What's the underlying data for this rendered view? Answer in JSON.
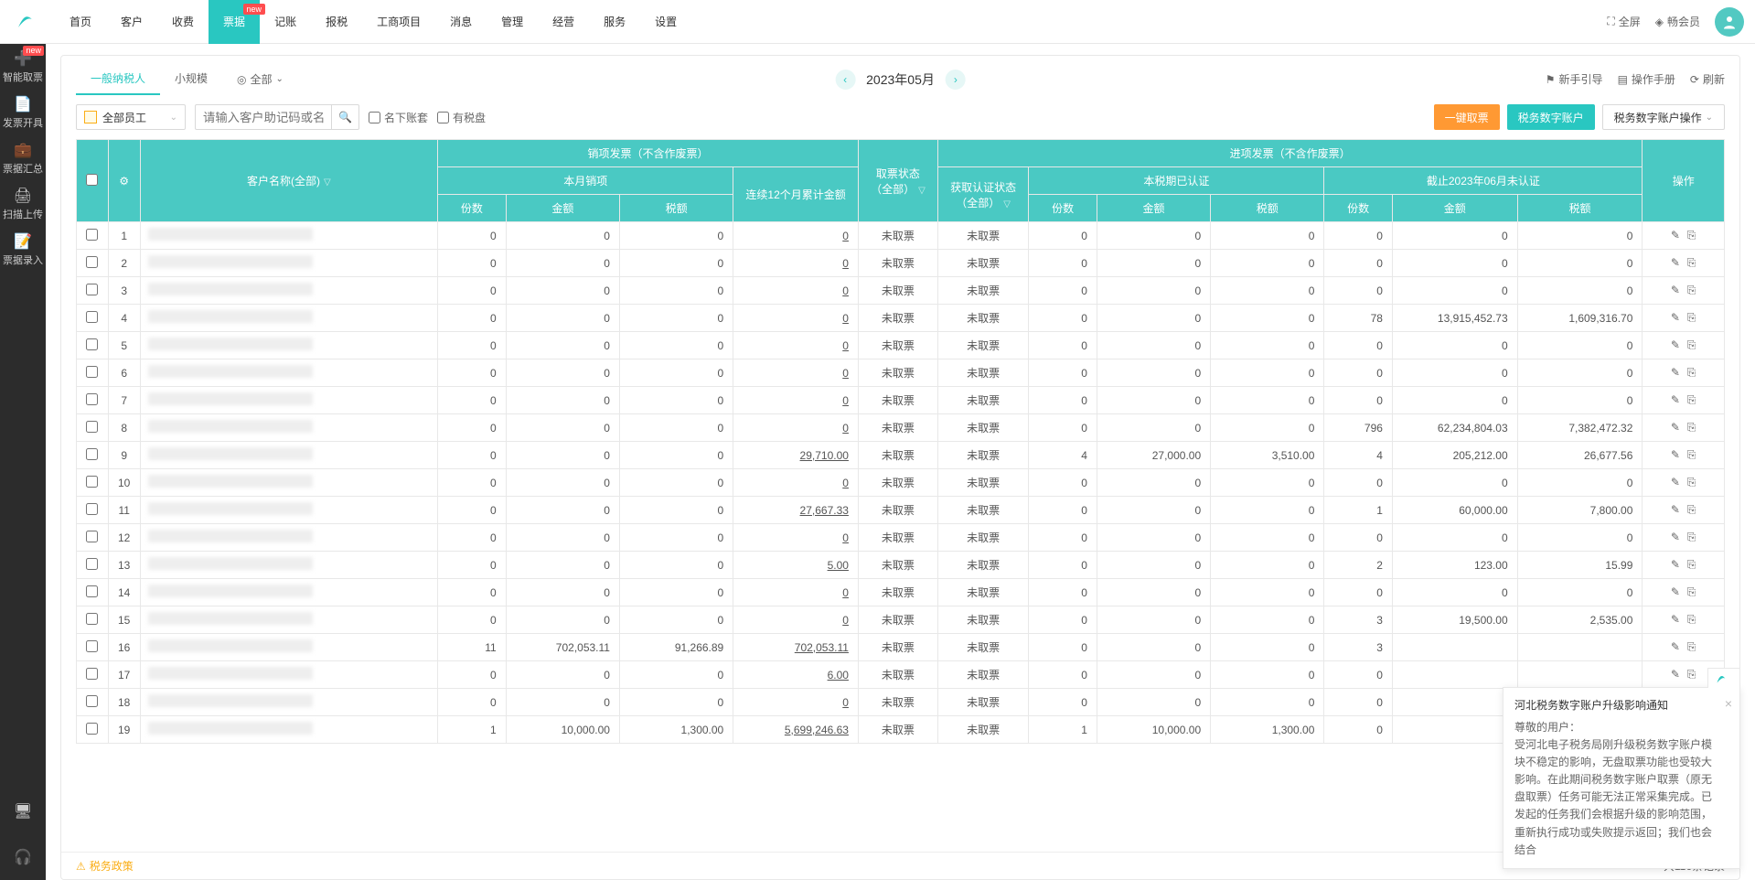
{
  "colors": {
    "teal": "#29c7c1",
    "teal_header": "#4ac9c3",
    "orange": "#ff9933",
    "red": "#ff4d4f",
    "warn": "#faad14",
    "sidebar_bg": "#2c2c2c"
  },
  "topnav": {
    "items": [
      {
        "label": "首页"
      },
      {
        "label": "客户"
      },
      {
        "label": "收费"
      },
      {
        "label": "票据",
        "active": true,
        "new": true
      },
      {
        "label": "记账"
      },
      {
        "label": "报税"
      },
      {
        "label": "工商项目"
      },
      {
        "label": "消息"
      },
      {
        "label": "管理"
      },
      {
        "label": "经营"
      },
      {
        "label": "服务"
      },
      {
        "label": "设置"
      }
    ],
    "right": {
      "fullscreen": "全屏",
      "member": "畅会员"
    }
  },
  "sidebar": {
    "items": [
      {
        "label": "智能取票",
        "icon": "➕",
        "new": true
      },
      {
        "label": "发票开具",
        "icon": "📄"
      },
      {
        "label": "票据汇总",
        "icon": "💼"
      },
      {
        "label": "扫描上传",
        "icon": "🖨"
      },
      {
        "label": "票据录入",
        "icon": "📝"
      }
    ]
  },
  "tabs": {
    "items": [
      {
        "label": "一般纳税人",
        "active": true
      },
      {
        "label": "小规模"
      }
    ],
    "scope": "全部",
    "month": "2023年05月",
    "right": {
      "guide": "新手引导",
      "manual": "操作手册",
      "refresh": "刷新"
    }
  },
  "filter": {
    "employee_select": "全部员工",
    "search_placeholder": "请输入客户助记码或名称",
    "chk_name": "名下账套",
    "chk_disk": "有税盘",
    "btn_fetch": "一键取票",
    "btn_digital": "税务数字账户",
    "btn_ops": "税务数字账户操作"
  },
  "table": {
    "headers": {
      "group_sales": "销项发票（不含作废票）",
      "group_input": "进项发票（不含作废票）",
      "month_sale": "本月销项",
      "cum12": "连续12个月累计金额",
      "fetch_status": "取票状态（全部）",
      "cert_period": "本税期已认证",
      "uncert_until": "截止2023年06月未认证",
      "cert_status": "获取认证状态（全部）",
      "customer": "客户名称(全部)",
      "qty": "份数",
      "amount": "金额",
      "tax": "税额",
      "ops": "操作"
    },
    "status_unfetched": "未取票",
    "rows": [
      {
        "idx": 1,
        "q": 0,
        "a": "0",
        "t": "0",
        "c12": "0",
        "fs": "未取票",
        "cs": "未取票",
        "cq": 0,
        "ca": "0",
        "ct": "0",
        "uq": 0,
        "ua": "0",
        "ut": "0"
      },
      {
        "idx": 2,
        "q": 0,
        "a": "0",
        "t": "0",
        "c12": "0",
        "fs": "未取票",
        "cs": "未取票",
        "cq": 0,
        "ca": "0",
        "ct": "0",
        "uq": 0,
        "ua": "0",
        "ut": "0"
      },
      {
        "idx": 3,
        "q": 0,
        "a": "0",
        "t": "0",
        "c12": "0",
        "fs": "未取票",
        "cs": "未取票",
        "cq": 0,
        "ca": "0",
        "ct": "0",
        "uq": 0,
        "ua": "0",
        "ut": "0"
      },
      {
        "idx": 4,
        "q": 0,
        "a": "0",
        "t": "0",
        "c12": "0",
        "fs": "未取票",
        "cs": "未取票",
        "cq": 0,
        "ca": "0",
        "ct": "0",
        "uq": 78,
        "ua": "13,915,452.73",
        "ut": "1,609,316.70"
      },
      {
        "idx": 5,
        "q": 0,
        "a": "0",
        "t": "0",
        "c12": "0",
        "fs": "未取票",
        "cs": "未取票",
        "cq": 0,
        "ca": "0",
        "ct": "0",
        "uq": 0,
        "ua": "0",
        "ut": "0"
      },
      {
        "idx": 6,
        "q": 0,
        "a": "0",
        "t": "0",
        "c12": "0",
        "fs": "未取票",
        "cs": "未取票",
        "cq": 0,
        "ca": "0",
        "ct": "0",
        "uq": 0,
        "ua": "0",
        "ut": "0"
      },
      {
        "idx": 7,
        "q": 0,
        "a": "0",
        "t": "0",
        "c12": "0",
        "fs": "未取票",
        "cs": "未取票",
        "cq": 0,
        "ca": "0",
        "ct": "0",
        "uq": 0,
        "ua": "0",
        "ut": "0"
      },
      {
        "idx": 8,
        "q": 0,
        "a": "0",
        "t": "0",
        "c12": "0",
        "fs": "未取票",
        "cs": "未取票",
        "cq": 0,
        "ca": "0",
        "ct": "0",
        "uq": 796,
        "ua": "62,234,804.03",
        "ut": "7,382,472.32"
      },
      {
        "idx": 9,
        "q": 0,
        "a": "0",
        "t": "0",
        "c12": "29,710.00",
        "fs": "未取票",
        "cs": "未取票",
        "cq": 4,
        "ca": "27,000.00",
        "ct": "3,510.00",
        "uq": 4,
        "ua": "205,212.00",
        "ut": "26,677.56"
      },
      {
        "idx": 10,
        "q": 0,
        "a": "0",
        "t": "0",
        "c12": "0",
        "fs": "未取票",
        "cs": "未取票",
        "cq": 0,
        "ca": "0",
        "ct": "0",
        "uq": 0,
        "ua": "0",
        "ut": "0"
      },
      {
        "idx": 11,
        "q": 0,
        "a": "0",
        "t": "0",
        "c12": "27,667.33",
        "fs": "未取票",
        "cs": "未取票",
        "cq": 0,
        "ca": "0",
        "ct": "0",
        "uq": 1,
        "ua": "60,000.00",
        "ut": "7,800.00"
      },
      {
        "idx": 12,
        "q": 0,
        "a": "0",
        "t": "0",
        "c12": "0",
        "fs": "未取票",
        "cs": "未取票",
        "cq": 0,
        "ca": "0",
        "ct": "0",
        "uq": 0,
        "ua": "0",
        "ut": "0"
      },
      {
        "idx": 13,
        "q": 0,
        "a": "0",
        "t": "0",
        "c12": "5.00",
        "fs": "未取票",
        "cs": "未取票",
        "cq": 0,
        "ca": "0",
        "ct": "0",
        "uq": 2,
        "ua": "123.00",
        "ut": "15.99"
      },
      {
        "idx": 14,
        "q": 0,
        "a": "0",
        "t": "0",
        "c12": "0",
        "fs": "未取票",
        "cs": "未取票",
        "cq": 0,
        "ca": "0",
        "ct": "0",
        "uq": 0,
        "ua": "0",
        "ut": "0"
      },
      {
        "idx": 15,
        "q": 0,
        "a": "0",
        "t": "0",
        "c12": "0",
        "fs": "未取票",
        "cs": "未取票",
        "cq": 0,
        "ca": "0",
        "ct": "0",
        "uq": 3,
        "ua": "19,500.00",
        "ut": "2,535.00"
      },
      {
        "idx": 16,
        "q": 11,
        "a": "702,053.11",
        "t": "91,266.89",
        "c12": "702,053.11",
        "fs": "未取票",
        "cs": "未取票",
        "cq": 0,
        "ca": "0",
        "ct": "0",
        "uq": 3,
        "ua": "",
        "ut": ""
      },
      {
        "idx": 17,
        "q": 0,
        "a": "0",
        "t": "0",
        "c12": "6.00",
        "fs": "未取票",
        "cs": "未取票",
        "cq": 0,
        "ca": "0",
        "ct": "0",
        "uq": 0,
        "ua": "",
        "ut": ""
      },
      {
        "idx": 18,
        "q": 0,
        "a": "0",
        "t": "0",
        "c12": "0",
        "fs": "未取票",
        "cs": "未取票",
        "cq": 0,
        "ca": "0",
        "ct": "0",
        "uq": 0,
        "ua": "",
        "ut": ""
      },
      {
        "idx": 19,
        "q": 1,
        "a": "10,000.00",
        "t": "1,300.00",
        "c12": "5,699,246.63",
        "fs": "未取票",
        "cs": "未取票",
        "cq": 1,
        "ca": "10,000.00",
        "ct": "1,300.00",
        "uq": 0,
        "ua": "",
        "ut": ""
      }
    ]
  },
  "footer": {
    "policy": "税务政策",
    "total": "共116条记录"
  },
  "notification": {
    "title": "河北税务数字账户升级影响通知",
    "greeting": "尊敬的用户：",
    "body": "受河北电子税务局刚升级税务数字账户模块不稳定的影响，无盘取票功能也受较大影响。在此期间税务数字账户取票（原无盘取票）任务可能无法正常采集完成。已发起的任务我们会根据升级的影响范围，重新执行成功或失败提示返回；我们也会结合"
  }
}
